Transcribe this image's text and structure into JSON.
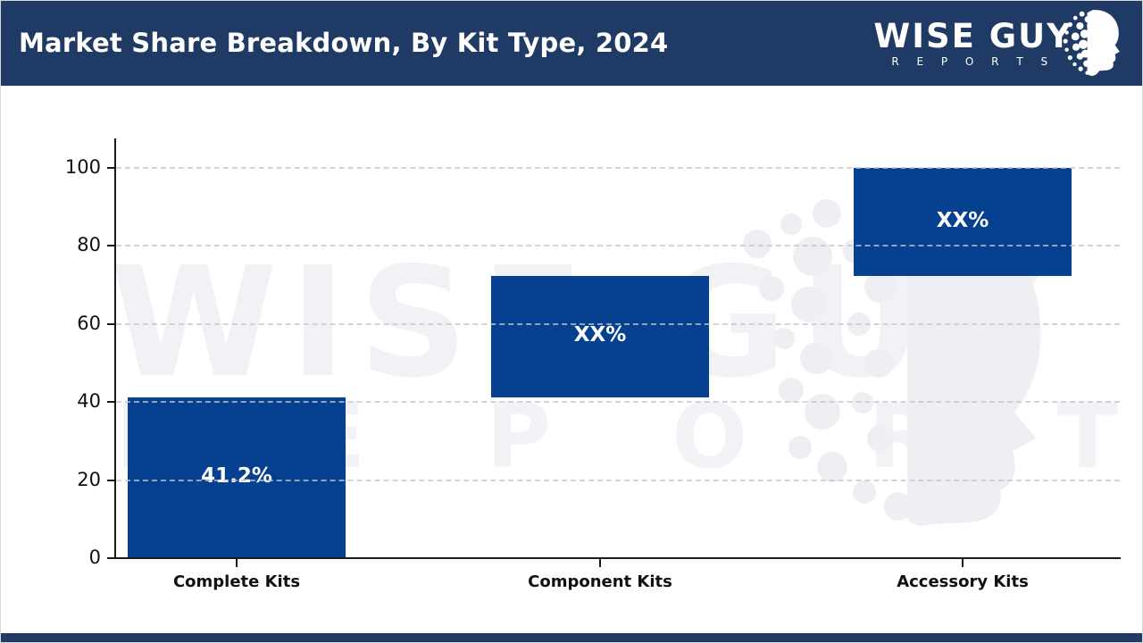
{
  "page": {
    "accent_navy": "#1F3A64",
    "bar_blue": "#054190",
    "background": "#ffffff"
  },
  "header": {
    "title": "Market Share Breakdown, By Kit Type, 2024",
    "logo": {
      "wordmark": "WISE GUY",
      "subtext": "R E P O R T S"
    }
  },
  "watermark": {
    "line1": "WISE GUY",
    "line2": "R E P O R T S"
  },
  "chart_data": {
    "type": "bar",
    "subtype": "waterfall-stacked",
    "title": "Market Share Breakdown, By Kit Type, 2024",
    "categories": [
      "Complete Kits",
      "Component Kits",
      "Accessory Kits"
    ],
    "segments": [
      {
        "category": "Complete Kits",
        "start": 0,
        "end": 41.2,
        "value": 41.2,
        "label": "41.2%"
      },
      {
        "category": "Component Kits",
        "start": 41.2,
        "end": 72.2,
        "value": 31.0,
        "label": "XX%"
      },
      {
        "category": "Accessory Kits",
        "start": 72.2,
        "end": 100,
        "value": 27.8,
        "label": "XX%"
      }
    ],
    "xlabel": "",
    "ylabel": "",
    "ylim": [
      0,
      100
    ],
    "yticks": [
      0,
      20,
      40,
      60,
      80,
      100
    ],
    "grid": "horizontal-dashed",
    "legend": "none",
    "bar_color": "#054190",
    "bar_label_color": "#ffffff"
  }
}
